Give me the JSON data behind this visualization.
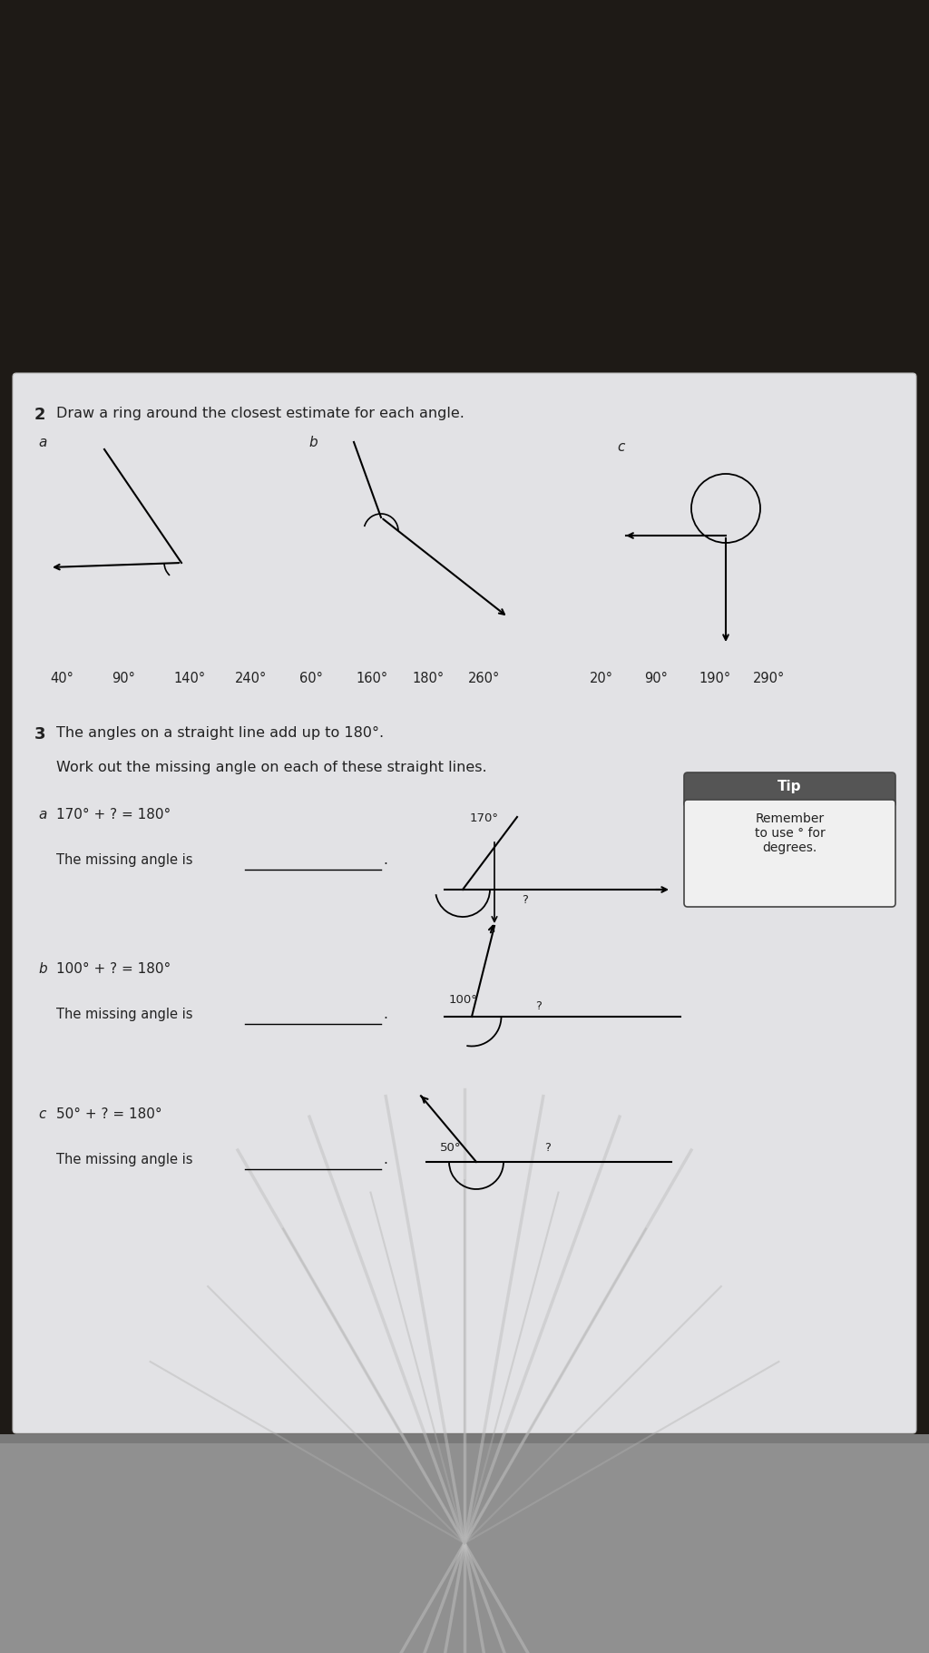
{
  "section2_title": "Draw a ring around the closest estimate for each angle.",
  "section3_title": "The angles on a straight line add up to 180°.",
  "section3_subtitle": "Work out the missing angle on each of these straight lines.",
  "angle_a_choices": [
    "40°",
    "90°",
    "140°",
    "240°"
  ],
  "angle_b_choices": [
    "60°",
    "160°",
    "180°",
    "260°"
  ],
  "angle_c_choices": [
    "20°",
    "90°",
    "190°",
    "290°"
  ],
  "eq_a": "170° + ? = 180°",
  "eq_b": "100° + ? = 180°",
  "eq_c": "50° + ? = 180°",
  "missing_a_label": "170°",
  "missing_b_label": "100°",
  "missing_c_label": "50°",
  "tip_title": "Tip",
  "tip_text": "Remember\nto use ° for\ndegrees.",
  "text_color": "#222222",
  "dark_bg": "#1e1a16",
  "paper_bg": "#e2e2e5",
  "tip_header_bg": "#555555",
  "tip_body_bg": "#f0f0f0"
}
